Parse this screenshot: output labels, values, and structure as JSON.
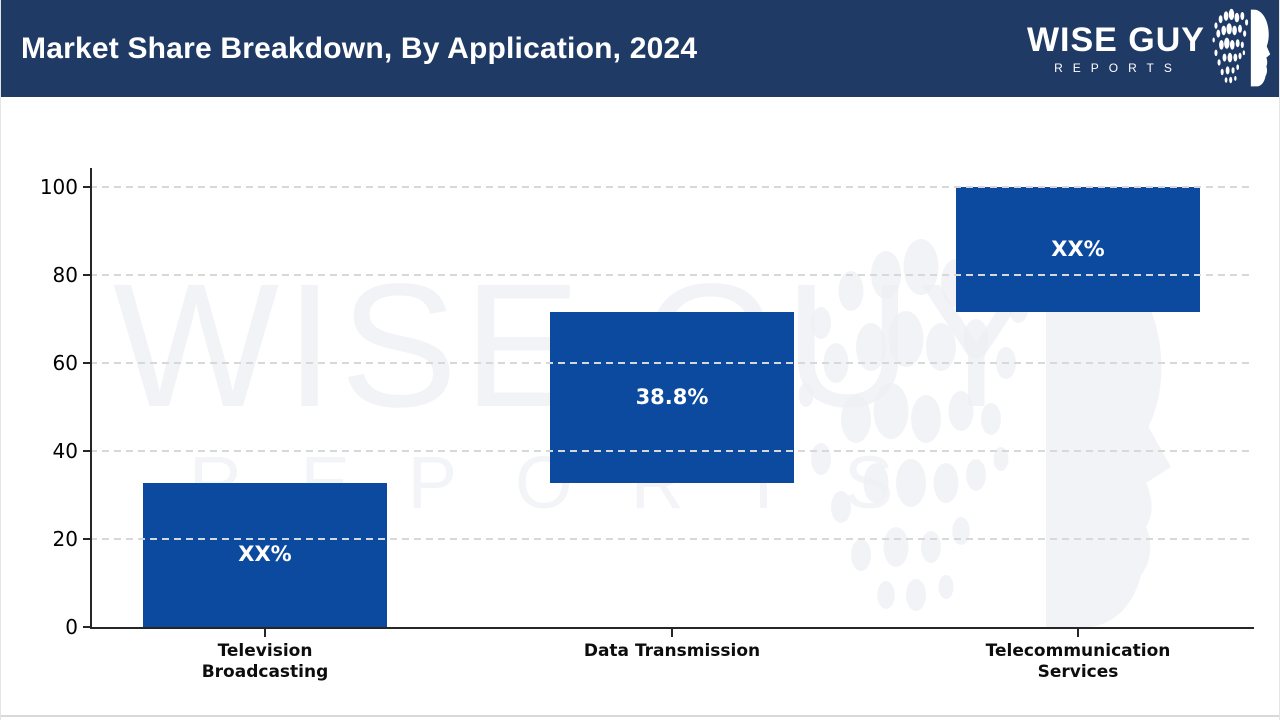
{
  "header": {
    "title": "Market Share Breakdown, By Application, 2024",
    "logo": {
      "line1": "WISE GUY",
      "line2": "REPORTS"
    }
  },
  "watermark": {
    "line1": "WISE GUY",
    "line2": "REPORTS"
  },
  "chart_data": {
    "type": "bar",
    "subtype": "waterfall",
    "title": "Market Share Breakdown, By Application, 2024",
    "categories": [
      [
        "Television",
        "Broadcasting"
      ],
      [
        "Data Transmission"
      ],
      [
        "Telecommunication",
        "Services"
      ]
    ],
    "segments": [
      {
        "category": "Television Broadcasting",
        "start": 0,
        "end": 32.7,
        "label": "XX%"
      },
      {
        "category": "Data Transmission",
        "start": 32.7,
        "end": 71.5,
        "label": "38.8%"
      },
      {
        "category": "Telecommunication Services",
        "start": 71.5,
        "end": 100,
        "label": "XX%"
      }
    ],
    "ylim": [
      0,
      100
    ],
    "yticks": [
      0,
      20,
      40,
      60,
      80,
      100
    ],
    "xlabel": "",
    "ylabel": "",
    "legend": "none",
    "grid": "horizontal-dashed",
    "colors": {
      "header_bg": "#203a66",
      "bar": "#0b4a9e",
      "bar_label": "#ffffff",
      "axis": "#262626",
      "grid": "#d8d8d8",
      "tick_label": "#000000",
      "watermark": "#f2f3f6"
    }
  }
}
